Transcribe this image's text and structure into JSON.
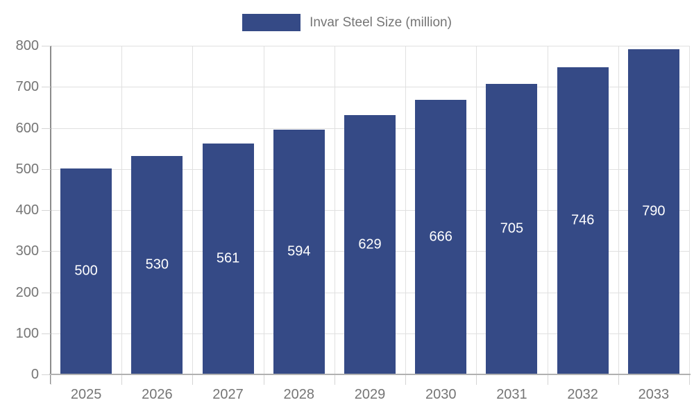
{
  "chart_data": {
    "type": "bar",
    "title": "",
    "categories": [
      "2025",
      "2026",
      "2027",
      "2028",
      "2029",
      "2030",
      "2031",
      "2032",
      "2033"
    ],
    "series": [
      {
        "name": "Invar Steel Size (million)",
        "values": [
          500,
          530,
          561,
          594,
          629,
          666,
          705,
          746,
          790
        ]
      }
    ],
    "xlabel": "",
    "ylabel": "",
    "ylim": [
      0,
      800
    ],
    "yticks": [
      0,
      100,
      200,
      300,
      400,
      500,
      600,
      700,
      800
    ],
    "grid": true,
    "legend_position": "top",
    "value_labels": "inside-center",
    "colors": {
      "bar": "#354a86",
      "value_label": "#ffffff",
      "axis_text": "#757575",
      "legend_text": "#757575",
      "grid_line": "#e0e0e0",
      "y_axis_line": "#8c8c8c",
      "x_axis_line": "#b1b1b1",
      "tick_line": "#d4d4d4",
      "background": "#ffffff"
    }
  },
  "legend": {
    "label": "Invar Steel Size (million)"
  }
}
